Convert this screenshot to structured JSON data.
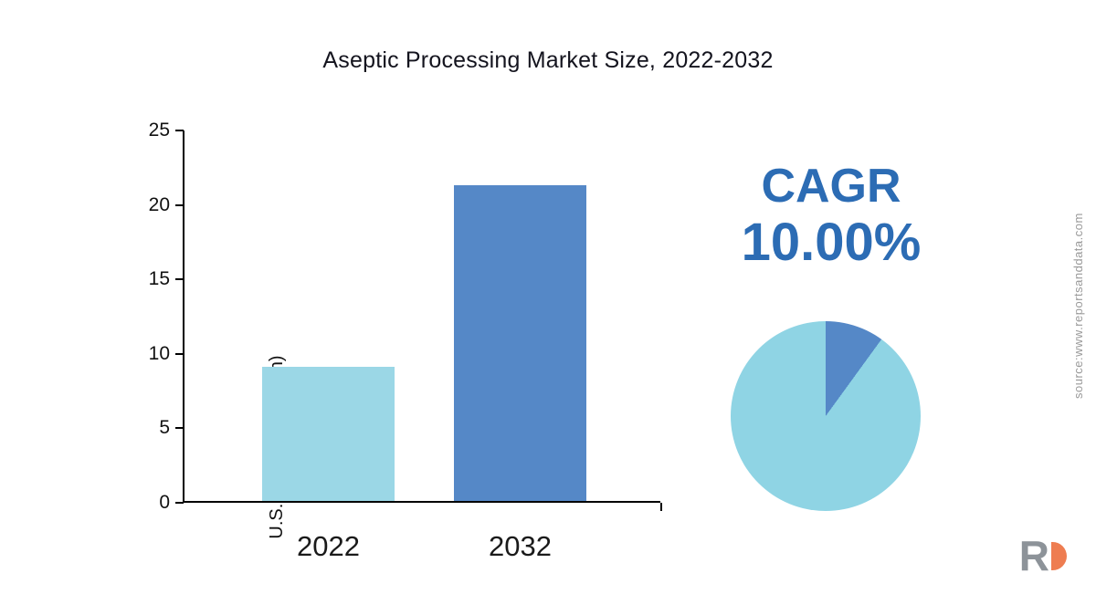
{
  "title": "Aseptic Processing Market Size, 2022-2032",
  "chart_data": {
    "type": "bar",
    "title": "Aseptic Processing Market Size, 2022-2032",
    "categories": [
      "2022",
      "2032"
    ],
    "values": [
      9,
      21.2
    ],
    "xlabel": "",
    "ylabel": "U.S. Dollars (In Billion)",
    "ylim": [
      0,
      25
    ],
    "yticks": [
      0,
      5,
      10,
      15,
      20,
      25
    ],
    "bar_colors": [
      "#9bd7e6",
      "#5588c7"
    ],
    "grid": false,
    "legend": false
  },
  "cagr": {
    "label": "CAGR",
    "value": "10.00%",
    "percent": 10,
    "color": "#2c6cb4"
  },
  "pie": {
    "type": "pie",
    "slice_percent": 10,
    "slice_color": "#5588c7",
    "rest_color": "#8fd4e4"
  },
  "source": "source:www.reportsanddata.com",
  "logo": {
    "letter": "R"
  }
}
